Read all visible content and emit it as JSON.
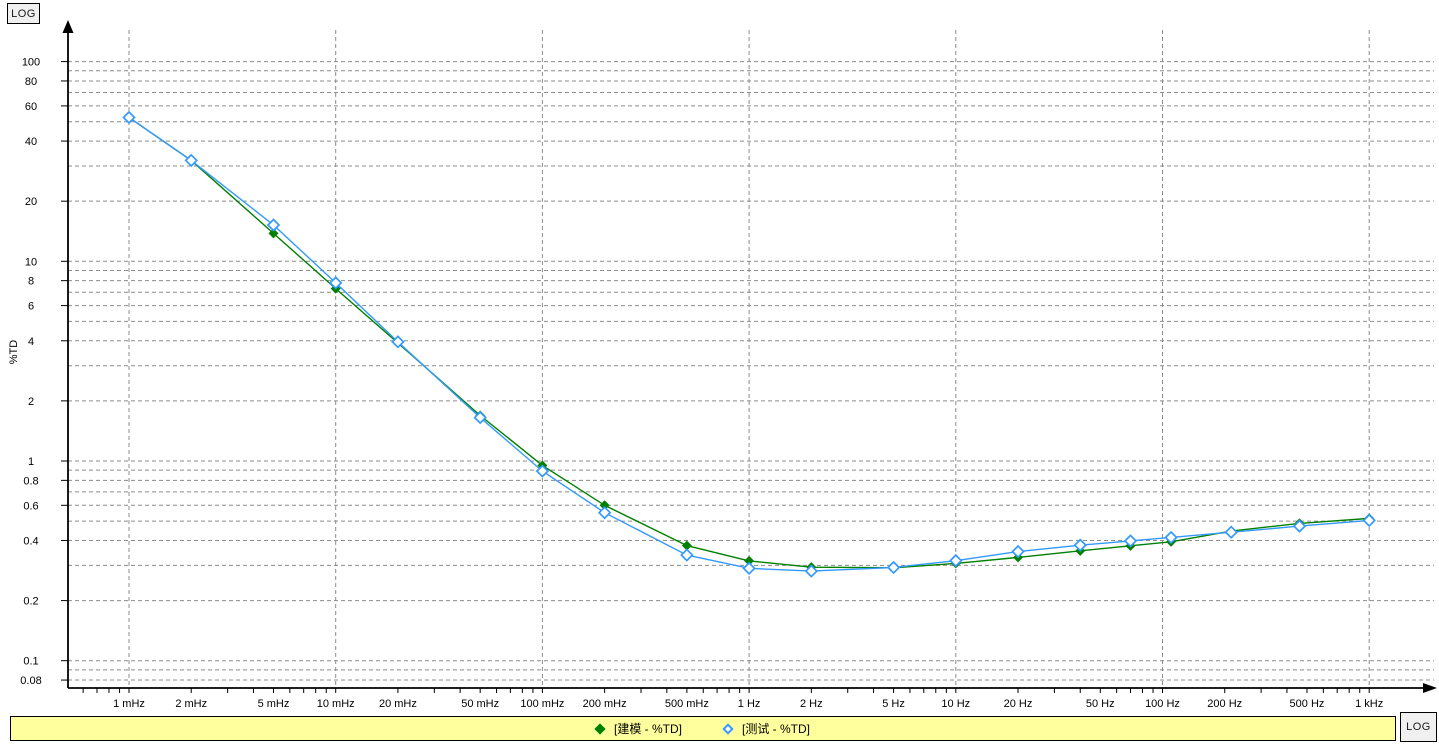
{
  "ui": {
    "log_button_y": "LOG",
    "log_button_x": "LOG"
  },
  "colors": {
    "grid": "#8c8c8c",
    "axis": "#000000",
    "legend_background": "#ffff9e",
    "log_button_background": "#f0f0f0",
    "series_model": "#008000",
    "series_test": "#3399ff"
  },
  "chart_data": {
    "type": "line",
    "x_scale": "log",
    "y_scale": "log",
    "ylabel": "%TD",
    "grid": "dashed",
    "legend_position": "bottom",
    "x_range_hz": [
      0.001,
      1000
    ],
    "y_range": [
      0.08,
      100
    ],
    "x_ticks": [
      {
        "f": 0.001,
        "label": "1 mHz"
      },
      {
        "f": 0.002,
        "label": "2 mHz"
      },
      {
        "f": 0.005,
        "label": "5 mHz"
      },
      {
        "f": 0.01,
        "label": "10 mHz"
      },
      {
        "f": 0.02,
        "label": "20 mHz"
      },
      {
        "f": 0.05,
        "label": "50 mHz"
      },
      {
        "f": 0.1,
        "label": "100 mHz"
      },
      {
        "f": 0.2,
        "label": "200 mHz"
      },
      {
        "f": 0.5,
        "label": "500 mHz"
      },
      {
        "f": 1,
        "label": "1 Hz"
      },
      {
        "f": 2,
        "label": "2 Hz"
      },
      {
        "f": 5,
        "label": "5 Hz"
      },
      {
        "f": 10,
        "label": "10 Hz"
      },
      {
        "f": 20,
        "label": "20 Hz"
      },
      {
        "f": 50,
        "label": "50 Hz"
      },
      {
        "f": 100,
        "label": "100 Hz"
      },
      {
        "f": 200,
        "label": "200 Hz"
      },
      {
        "f": 500,
        "label": "500 Hz"
      },
      {
        "f": 1000,
        "label": "1 kHz"
      }
    ],
    "y_ticks": [
      {
        "v": 100,
        "label": "100"
      },
      {
        "v": 80,
        "label": "80"
      },
      {
        "v": 60,
        "label": "60"
      },
      {
        "v": 40,
        "label": "40"
      },
      {
        "v": 20,
        "label": "20"
      },
      {
        "v": 10,
        "label": "10"
      },
      {
        "v": 8,
        "label": "8"
      },
      {
        "v": 6,
        "label": "6"
      },
      {
        "v": 4,
        "label": "4"
      },
      {
        "v": 2,
        "label": "2"
      },
      {
        "v": 1,
        "label": "1"
      },
      {
        "v": 0.8,
        "label": "0.8"
      },
      {
        "v": 0.6,
        "label": "0.6"
      },
      {
        "v": 0.4,
        "label": "0.4"
      },
      {
        "v": 0.2,
        "label": "0.2"
      },
      {
        "v": 0.1,
        "label": "0.1"
      },
      {
        "v": 0.08,
        "label": "0.08"
      }
    ],
    "frequencies_hz": [
      0.001,
      0.002,
      0.005,
      0.01,
      0.02,
      0.05,
      0.1,
      0.2,
      0.5,
      1,
      2,
      5,
      10,
      20,
      40,
      70,
      110,
      215,
      460,
      1000
    ],
    "series": [
      {
        "name": "[建模 - %TD]",
        "color": "#008000",
        "marker": "filled-diamond",
        "values": [
          52.5,
          32,
          13.8,
          7.3,
          3.9,
          1.69,
          0.95,
          0.6,
          0.377,
          0.316,
          0.294,
          0.292,
          0.307,
          0.329,
          0.355,
          0.376,
          0.394,
          0.446,
          0.487,
          0.516
        ]
      },
      {
        "name": "[测试 - %TD]",
        "color": "#3399ff",
        "marker": "open-diamond",
        "values": [
          52.5,
          32,
          15.2,
          7.8,
          3.95,
          1.65,
          0.89,
          0.551,
          0.338,
          0.29,
          0.281,
          0.293,
          0.317,
          0.352,
          0.379,
          0.398,
          0.414,
          0.44,
          0.472,
          0.504
        ]
      }
    ]
  }
}
